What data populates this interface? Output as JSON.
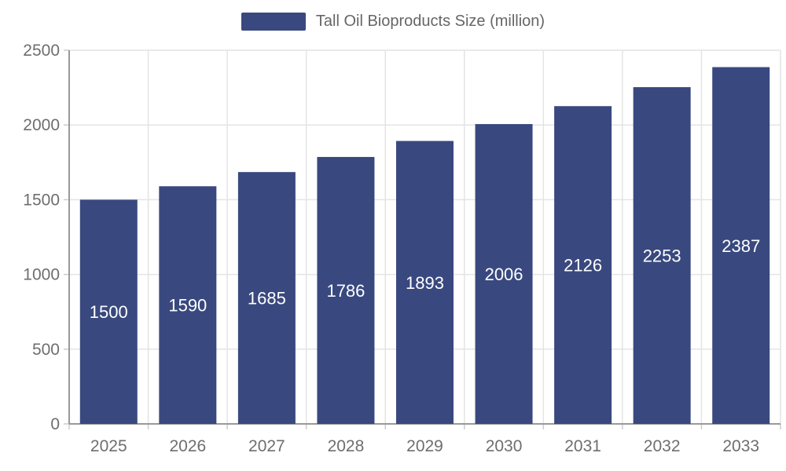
{
  "legend": {
    "label": "Tall Oil Bioproducts Size (million)"
  },
  "chart_data": {
    "type": "bar",
    "title": "Tall Oil Bioproducts Size (million)",
    "categories": [
      "2025",
      "2026",
      "2027",
      "2028",
      "2029",
      "2030",
      "2031",
      "2032",
      "2033"
    ],
    "series": [
      {
        "name": "Tall Oil Bioproducts Size (million)",
        "values": [
          1500,
          1590,
          1685,
          1786,
          1893,
          2006,
          2126,
          2253,
          2387
        ]
      }
    ],
    "value_labels_shown": true,
    "xlabel": "",
    "ylabel": "",
    "ylim": [
      0,
      2500
    ],
    "yticks": [
      0,
      500,
      1000,
      1500,
      2000,
      2500
    ],
    "grid": true,
    "legend_position": "top-center"
  },
  "colors": {
    "bar": "#39497f",
    "grid": "#e4e4e4",
    "axis": "#999999",
    "tick": "#cccccc",
    "axis_text": "#6e6e6e",
    "legend_text": "#666666",
    "value_text": "#ffffff",
    "background": "#ffffff"
  }
}
